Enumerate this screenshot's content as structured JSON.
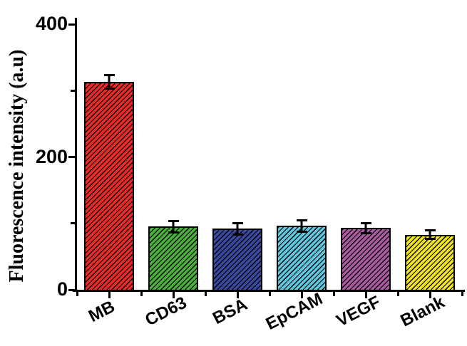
{
  "figure": {
    "background": "#ffffff",
    "axis_color": "#000000",
    "text_color": "#000000"
  },
  "chart_data": {
    "type": "bar",
    "title": "",
    "xlabel": "",
    "ylabel": "Fluorescence intensity (a.u)",
    "categories": [
      "MB",
      "CD63",
      "BSA",
      "EpCAM",
      "VEGF",
      "Blank"
    ],
    "values": [
      313,
      95,
      92,
      96,
      93,
      83
    ],
    "errors": [
      12,
      10,
      10,
      10,
      9,
      8
    ],
    "bar_colors": [
      "#e92b26",
      "#4bae3d",
      "#3a489d",
      "#5ec7dd",
      "#a85c9f",
      "#f2e41f"
    ],
    "bar_hatch": "diagonal-forward",
    "ylim": [
      0,
      410
    ],
    "yticks": [
      0,
      200,
      400
    ],
    "yticks_minor": [
      100,
      300
    ],
    "grid": false,
    "legend": "none",
    "error_bar_style": "caps-both-ends"
  }
}
